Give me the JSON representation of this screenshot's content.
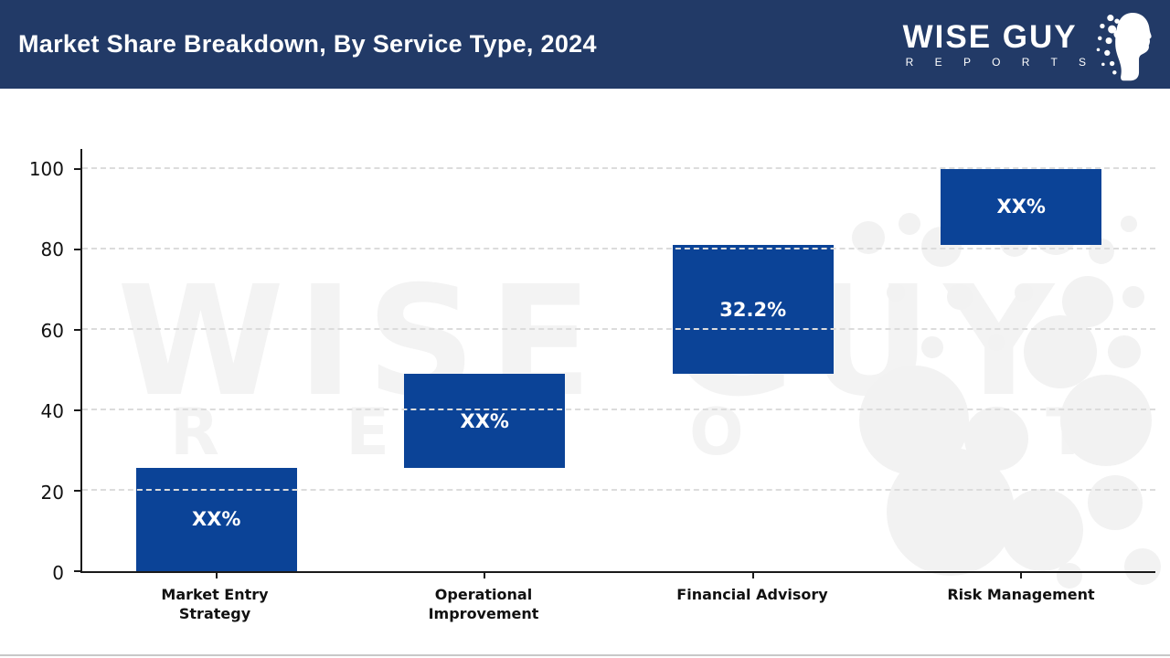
{
  "header": {
    "title": "Market Share Breakdown, By Service Type, 2024",
    "logo": {
      "name": "WISE GUY",
      "subtitle": "R E P O R T S"
    }
  },
  "watermark": {
    "line1": "WISE GUY",
    "line2": "R E P O R T S"
  },
  "colors": {
    "header_bg": "#223a67",
    "bar": "#0b4397",
    "grid": "#dcdcdc",
    "axis": "#1a1a1a",
    "watermark": "#f3f3f3",
    "footer_line": "#c8c8c8",
    "bar_label_text": "#ffffff"
  },
  "chart_data": {
    "type": "bar",
    "subtype": "floating-waterfall",
    "title": "Market Share Breakdown, By Service Type, 2024",
    "categories": [
      "Market Entry\nStrategy",
      "Operational\nImprovement",
      "Financial Advisory",
      "Risk Management"
    ],
    "segments": [
      {
        "category": "Market Entry Strategy",
        "start": 0,
        "end": 25.7,
        "label": "XX%"
      },
      {
        "category": "Operational Improvement",
        "start": 25.7,
        "end": 49.0,
        "label": "XX%"
      },
      {
        "category": "Financial Advisory",
        "start": 49.0,
        "end": 81.2,
        "label": "32.2%"
      },
      {
        "category": "Risk Management",
        "start": 81.2,
        "end": 100,
        "label": "XX%"
      }
    ],
    "yticks": [
      0,
      20,
      40,
      60,
      80,
      100
    ],
    "ylim": [
      0,
      105
    ],
    "xlabel": "",
    "ylabel": "",
    "grid": true,
    "grid_style": "dashed",
    "legend": null,
    "bar_color": "#0b4397",
    "bar_label_color": "#ffffff"
  }
}
